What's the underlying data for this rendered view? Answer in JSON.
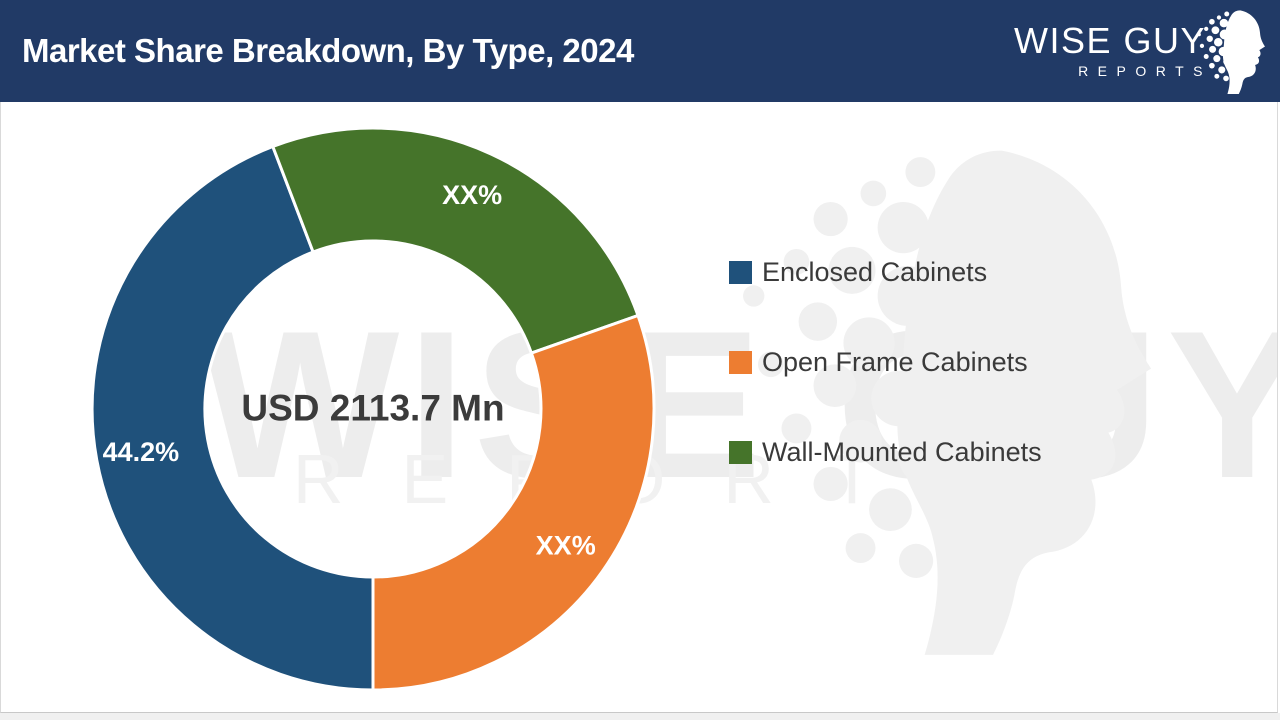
{
  "header": {
    "title": "Market Share Breakdown, By Type, 2024",
    "logo_line1": "WISE GUY",
    "logo_line2": "REPORTS"
  },
  "watermark": {
    "line1": "WISE GUY",
    "line2": "REPORTS"
  },
  "legend": {
    "items": [
      {
        "label": "Enclosed Cabinets",
        "color": "#1f517b"
      },
      {
        "label": "Open Frame Cabinets",
        "color": "#ed7d31"
      },
      {
        "label": "Wall-Mounted Cabinets",
        "color": "#45742a"
      }
    ]
  },
  "chart_data": {
    "type": "pie",
    "subtype": "donut",
    "title": "Market Share Breakdown, By Type, 2024",
    "center_label": "USD 2113.7 Mn",
    "start_angle_compass_deg": 180,
    "direction": "clockwise",
    "legend_position": "right",
    "segments": [
      {
        "name": "Enclosed Cabinets",
        "display_label": "44.2%",
        "value_pct": 44.2,
        "color": "#1f517b"
      },
      {
        "name": "Wall-Mounted Cabinets",
        "display_label": "XX%",
        "value_pct": 25.4,
        "color": "#45742a"
      },
      {
        "name": "Open Frame Cabinets",
        "display_label": "XX%",
        "value_pct": 30.4,
        "color": "#ed7d31"
      }
    ]
  },
  "colors": {
    "header_bg": "#213a66",
    "center_text": "#3b3b3b",
    "legend_text": "#3a3a3a",
    "segment_label_text": "#ffffff",
    "watermark": "#ededed"
  }
}
